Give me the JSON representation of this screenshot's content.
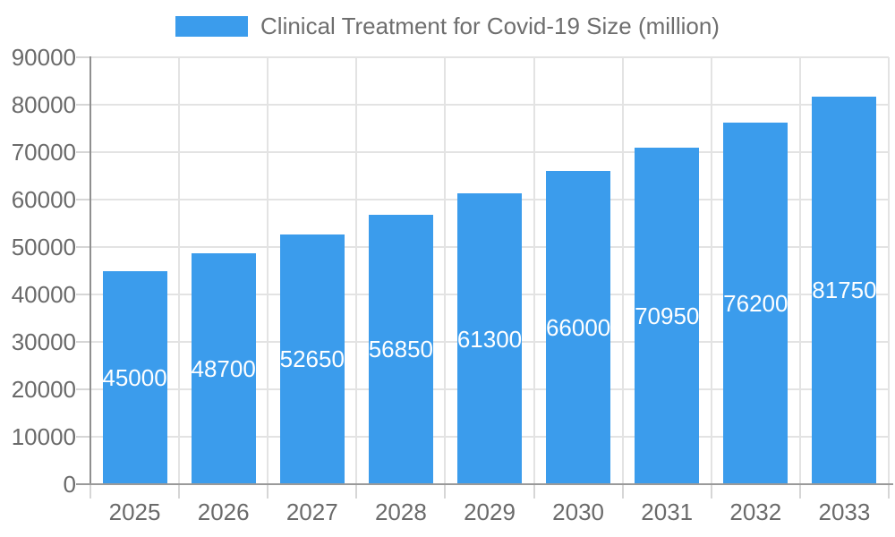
{
  "chart_data": {
    "type": "bar",
    "title": "Clinical Treatment for Covid-19 Size (million)",
    "categories": [
      "2025",
      "2026",
      "2027",
      "2028",
      "2029",
      "2030",
      "2031",
      "2032",
      "2033"
    ],
    "values": [
      45000,
      48700,
      52650,
      56850,
      61300,
      66000,
      70950,
      76200,
      81750
    ],
    "series": [
      {
        "name": "Clinical Treatment for Covid-19 Size (million)",
        "values": [
          45000,
          48700,
          52650,
          56850,
          61300,
          66000,
          70950,
          76200,
          81750
        ]
      }
    ],
    "xlabel": "",
    "ylabel": "",
    "ylim": [
      0,
      90000
    ],
    "ytick_step": 10000,
    "yticks": [
      0,
      10000,
      20000,
      30000,
      40000,
      50000,
      60000,
      70000,
      80000,
      90000
    ],
    "grid": true,
    "legend_position": "top",
    "bar_label_position": "inside-center"
  },
  "colors": {
    "bar": "#3B9CEC",
    "bar_label": "#FFFFFF",
    "grid": "#E3E3E3",
    "tick": "#D6D6D6",
    "axis_line": "#9A9A9A",
    "y_axis_line": "#8F8F8F",
    "axis_text": "#6A6A6A",
    "legend_text": "#6E6E6E",
    "background": "#FFFFFF"
  }
}
